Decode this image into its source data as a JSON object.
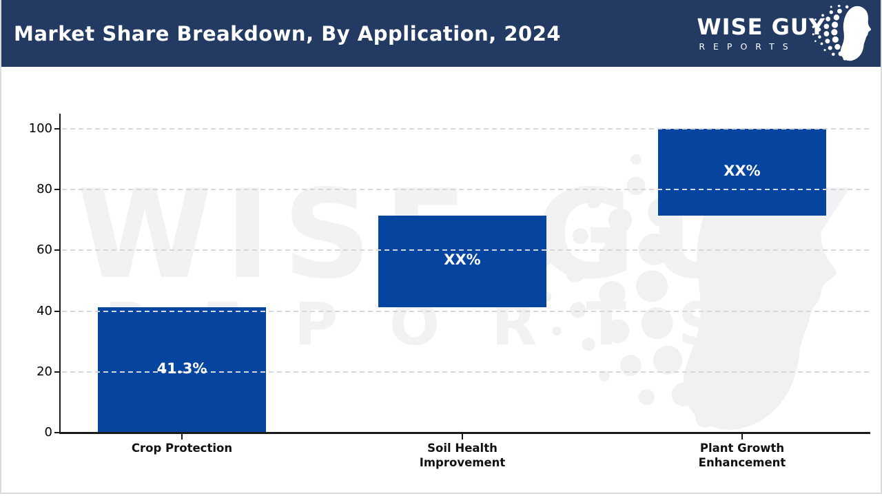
{
  "header": {
    "title": "Market Share Breakdown, By Application, 2024",
    "logo": {
      "line1": "WISE GUY",
      "line2": "REPORTS"
    }
  },
  "watermark": {
    "line1": "WISE GUY",
    "line2": "REPORTS"
  },
  "colors": {
    "header_bg": "#233a63",
    "bar_fill": "#06459f",
    "axis": "#1a1a1a",
    "gridline": "#d7d7d7",
    "bar_label_text": "#ffffff",
    "title_text": "#ffffff",
    "watermark": "#f2f2f4"
  },
  "chart_data": {
    "type": "bar",
    "subtype": "waterfall",
    "title": "Market Share Breakdown, By Application, 2024",
    "categories": [
      "Crop Protection",
      "Soil Health\nImprovement",
      "Plant Growth\nEnhancement"
    ],
    "series": [
      {
        "name": "Market Share (%)",
        "segments": [
          {
            "category": "Crop Protection",
            "start": 0,
            "end": 41.3,
            "display": "41.3%"
          },
          {
            "category": "Soil Health Improvement",
            "start": 41.3,
            "end": 71.5,
            "display": "XX%"
          },
          {
            "category": "Plant Growth Enhancement",
            "start": 71.5,
            "end": 100,
            "display": "XX%"
          }
        ]
      }
    ],
    "xlabel": "",
    "ylabel": "",
    "ylim": [
      0,
      100
    ],
    "y_ticks": [
      0,
      20,
      40,
      60,
      80,
      100
    ],
    "grid": "horizontal dashed, drawn over bars",
    "legend": "none"
  }
}
